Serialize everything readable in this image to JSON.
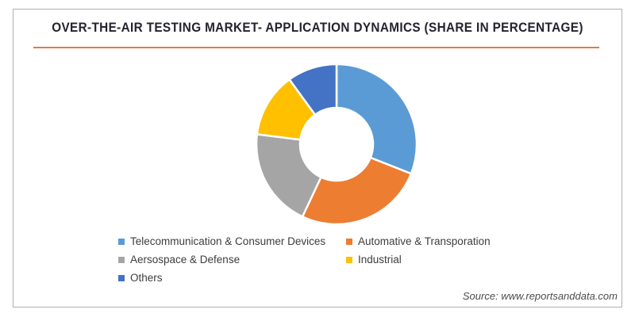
{
  "title": "OVER-THE-AIR TESTING MARKET- APPLICATION DYNAMICS (SHARE IN PERCENTAGE)",
  "source": "Source: www.reportsanddata.com",
  "styles": {
    "title_color": "#23232f",
    "accent_underline": "#df7b43",
    "frame_border": "#b0b0b0",
    "legend_text": "#3d3d3d",
    "slice_gap_stroke": "#ffffff"
  },
  "chart_data": {
    "type": "pie",
    "subtype": "donut",
    "title": "OVER-THE-AIR TESTING MARKET- APPLICATION DYNAMICS (SHARE IN PERCENTAGE)",
    "unit": "percent share",
    "start_angle_deg": 0,
    "direction": "clockwise",
    "inner_radius_ratio": 0.46,
    "legend_position": "bottom",
    "data_labels_shown": false,
    "slices": [
      {
        "label": "Telecommunication & Consumer Devices",
        "value": 31,
        "color": "#5B9BD5"
      },
      {
        "label": "Automative & Transporation",
        "value": 26,
        "color": "#ED7D31"
      },
      {
        "label": "Aersospace & Defense",
        "value": 20,
        "color": "#A5A5A5"
      },
      {
        "label": "Industrial",
        "value": 13,
        "color": "#FFC000"
      },
      {
        "label": "Others",
        "value": 10,
        "color": "#4472C4"
      }
    ]
  }
}
